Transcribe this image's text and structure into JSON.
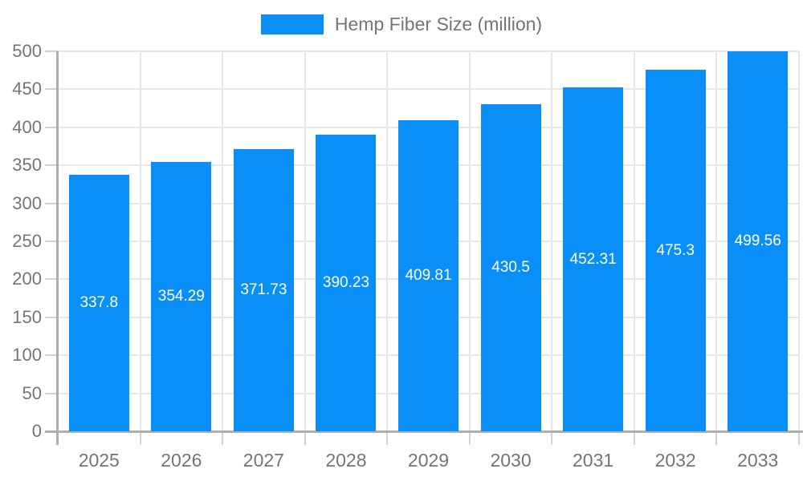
{
  "chart_data": {
    "type": "bar",
    "title": "",
    "legend": {
      "label": "Hemp Fiber Size (million)",
      "position": "top"
    },
    "categories": [
      "2025",
      "2026",
      "2027",
      "2028",
      "2029",
      "2030",
      "2031",
      "2032",
      "2033"
    ],
    "series": [
      {
        "name": "Hemp Fiber Size (million)",
        "values": [
          337.8,
          354.29,
          371.73,
          390.23,
          409.81,
          430.5,
          452.31,
          475.3,
          499.56
        ]
      }
    ],
    "value_labels": [
      "337.8",
      "354.29",
      "371.73",
      "390.23",
      "409.81",
      "430.5",
      "452.31",
      "475.3",
      "499.56"
    ],
    "xlabel": "",
    "ylabel": "",
    "ylim": [
      0,
      500
    ],
    "yticks": [
      0,
      50,
      100,
      150,
      200,
      250,
      300,
      350,
      400,
      450,
      500
    ],
    "grid": true,
    "colors": {
      "bar": "#0a8ff8",
      "grid": "#e6e6e6",
      "axis": "#aeaeae",
      "tick": "#d2d2d2",
      "text": "#757575",
      "value_text": "#ffffff",
      "background": "#ffffff"
    }
  }
}
